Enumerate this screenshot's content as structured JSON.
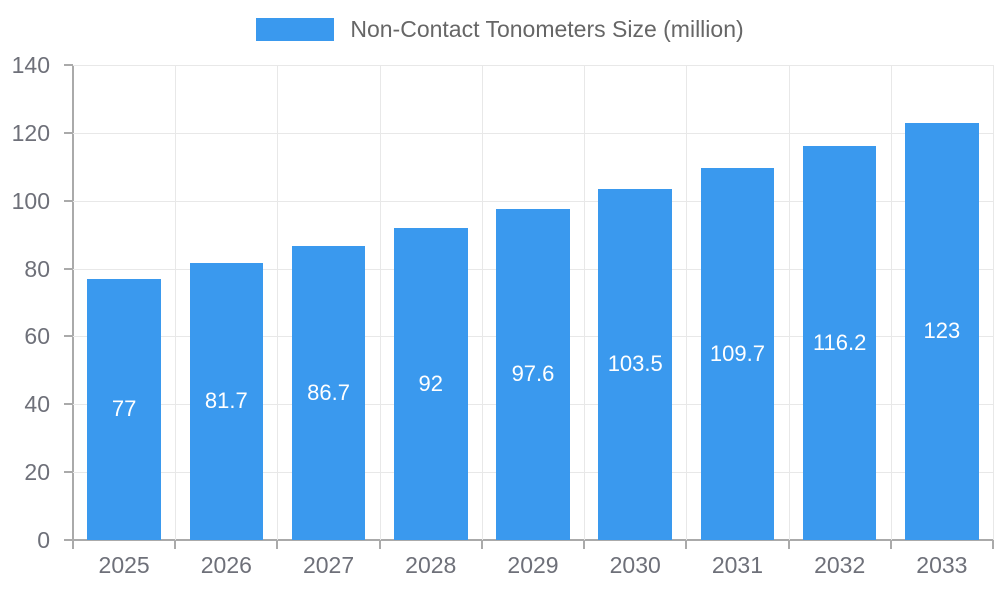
{
  "chart_data": {
    "type": "bar",
    "title": "Non-Contact Tonometers Size (million)",
    "legend": [
      "Non-Contact Tonometers Size (million)"
    ],
    "legend_position": "top-center",
    "categories": [
      "2025",
      "2026",
      "2027",
      "2028",
      "2029",
      "2030",
      "2031",
      "2032",
      "2033"
    ],
    "series": [
      {
        "name": "Non-Contact Tonometers Size (million)",
        "values": [
          77,
          81.7,
          86.7,
          92,
          97.6,
          103.5,
          109.7,
          116.2,
          123
        ]
      }
    ],
    "xlabel": "",
    "ylabel": "",
    "ylim": [
      0,
      140
    ],
    "yticks": [
      0,
      20,
      40,
      60,
      80,
      100,
      120,
      140
    ],
    "grid": true,
    "bar_color": "#3A99EE",
    "value_label_color": "#ffffff",
    "grid_color": "#e8e8e8",
    "axis_color": "#aaaaaa",
    "axis_label_color": "#6e7079",
    "legend_text_color": "#666666",
    "background_color": "#ffffff"
  }
}
